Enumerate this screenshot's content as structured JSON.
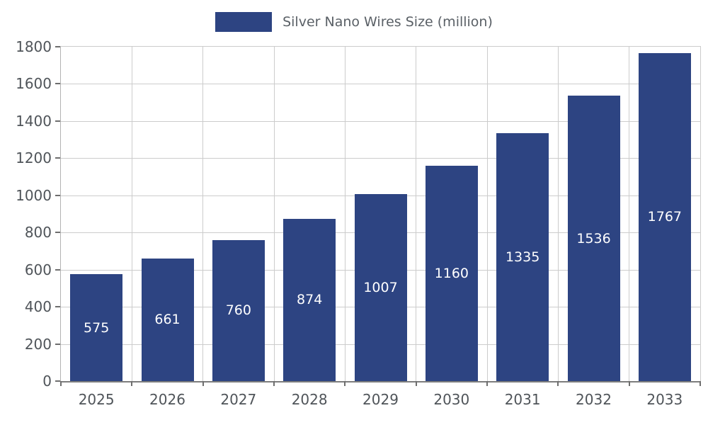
{
  "chart_data": {
    "type": "bar",
    "title": "Silver Nano Wires Size (million)",
    "legend": "Silver Nano Wires Size (million)",
    "categories": [
      "2025",
      "2026",
      "2027",
      "2028",
      "2029",
      "2030",
      "2031",
      "2032",
      "2033"
    ],
    "values": [
      575,
      661,
      760,
      874,
      1007,
      1160,
      1335,
      1536,
      1767
    ],
    "ylim": [
      0,
      1800
    ],
    "yticks": [
      0,
      200,
      400,
      600,
      800,
      1000,
      1200,
      1400,
      1600,
      1800
    ],
    "grid": true,
    "legend_position": "top",
    "bar_color": "#2d4482",
    "bar_label_color": "#ffffff",
    "axis_text_color": "#4f5459",
    "grid_color": "#cccccc"
  }
}
